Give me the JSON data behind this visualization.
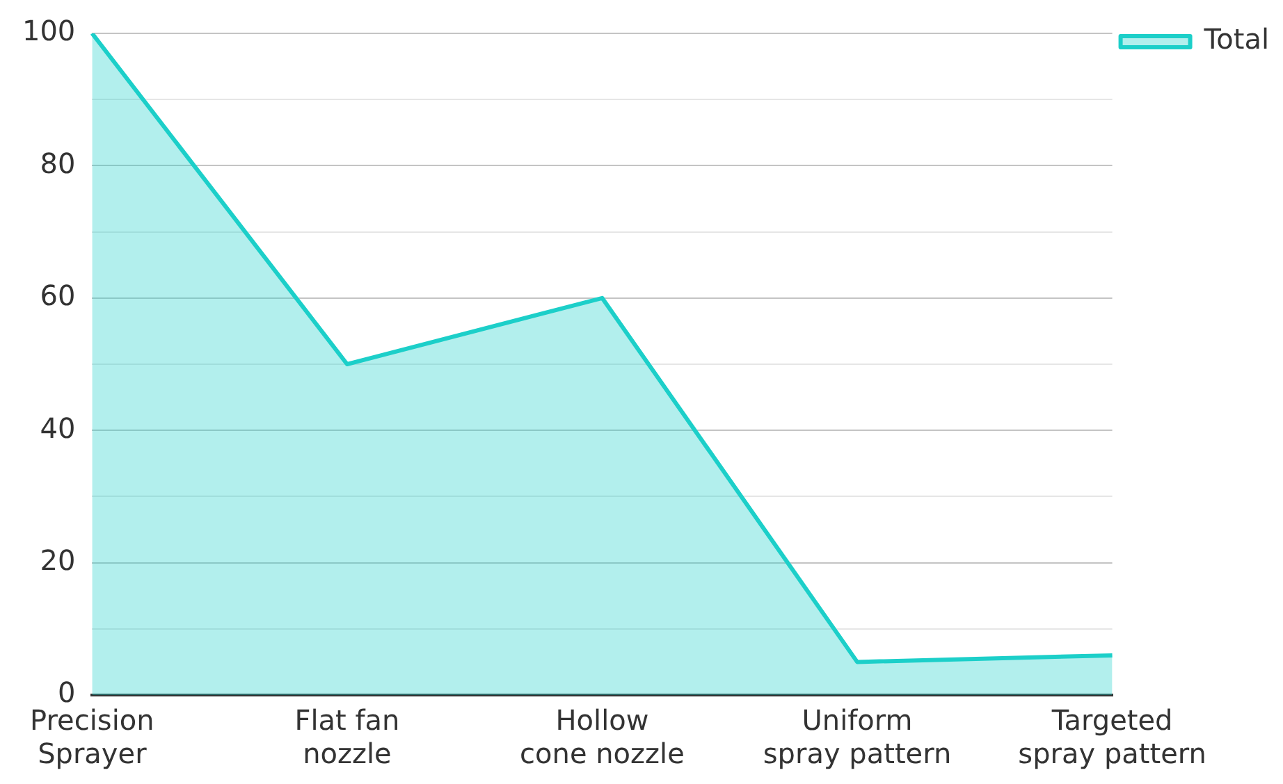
{
  "chart_data": {
    "type": "area",
    "categories": [
      "Precision Sprayer",
      "Flat fan nozzle",
      "Hollow cone nozzle",
      "Uniform spray pattern",
      "Targeted spray pattern"
    ],
    "series": [
      {
        "name": "Total",
        "color": "#1ccfc9",
        "values": [
          100,
          50,
          60,
          5,
          6
        ]
      }
    ],
    "ylim": [
      0,
      100
    ],
    "yticks": [
      0,
      {
        "value": 10,
        "label": null
      },
      20,
      {
        "value": 30,
        "label": null
      },
      40,
      {
        "value": 50,
        "label": null
      },
      60,
      {
        "value": 70,
        "label": null
      },
      80,
      {
        "value": 90,
        "label": null
      },
      100
    ],
    "grid": "y",
    "legend": "top right"
  }
}
